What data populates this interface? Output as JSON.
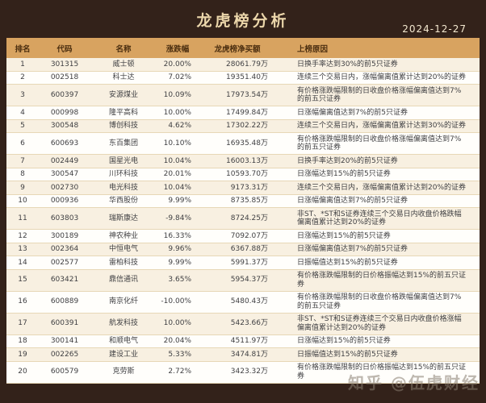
{
  "chart_data": {
    "type": "table",
    "title": "龙虎榜分析",
    "date": "2024-12-27",
    "columns": [
      "排名",
      "代码",
      "名称",
      "涨跌幅",
      "龙虎榜净买额",
      "上榜原因"
    ],
    "rows": [
      [
        "1",
        "301315",
        "威士顿",
        "20.00%",
        "28061.79万",
        "日换手率达到30%的前5只证券"
      ],
      [
        "2",
        "002518",
        "科士达",
        "7.02%",
        "19351.40万",
        "连续三个交易日内，涨幅偏离值累计达到20%的证券"
      ],
      [
        "3",
        "600397",
        "安源煤业",
        "10.09%",
        "17973.54万",
        "有价格涨跌幅限制的日收盘价格涨幅偏离值达到7%的前五只证券"
      ],
      [
        "4",
        "000998",
        "隆平高科",
        "10.00%",
        "17499.84万",
        "日涨幅偏离值达到7%的前5只证券"
      ],
      [
        "5",
        "300548",
        "博创科技",
        "4.62%",
        "17302.22万",
        "连续三个交易日内，涨幅偏离值累计达到30%的证券"
      ],
      [
        "6",
        "600693",
        "东百集团",
        "10.10%",
        "16935.48万",
        "有价格涨跌幅限制的日收盘价格涨幅偏离值达到7%的前五只证券"
      ],
      [
        "7",
        "002449",
        "国星光电",
        "10.04%",
        "16003.13万",
        "日换手率达到20%的前5只证券"
      ],
      [
        "8",
        "300547",
        "川环科技",
        "20.01%",
        "10593.70万",
        "日涨幅达到15%的前5只证券"
      ],
      [
        "9",
        "002730",
        "电光科技",
        "10.04%",
        "9173.31万",
        "连续三个交易日内，涨幅偏离值累计达到20%的证券"
      ],
      [
        "10",
        "000936",
        "华西股份",
        "9.99%",
        "8735.85万",
        "日涨幅偏离值达到7%的前5只证券"
      ],
      [
        "11",
        "603803",
        "瑞斯康达",
        "-9.84%",
        "8724.25万",
        "非ST、*ST和S证券连续三个交易日内收盘价格跌幅偏离值累计达到20%的证券"
      ],
      [
        "12",
        "300189",
        "神农种业",
        "16.33%",
        "7092.07万",
        "日涨幅达到15%的前5只证券"
      ],
      [
        "13",
        "002364",
        "中恒电气",
        "9.96%",
        "6367.88万",
        "日涨幅偏离值达到7%的前5只证券"
      ],
      [
        "14",
        "002577",
        "雷柏科技",
        "9.99%",
        "5991.37万",
        "日振幅值达到15%的前5只证券"
      ],
      [
        "15",
        "603421",
        "鼎信通讯",
        "3.65%",
        "5954.37万",
        "有价格涨跌幅限制的日价格振幅达到15%的前五只证券"
      ],
      [
        "16",
        "600889",
        "南京化纤",
        "-10.00%",
        "5480.43万",
        "有价格涨跌幅限制的日收盘价格跌幅偏离值达到7%的前五只证券"
      ],
      [
        "17",
        "600391",
        "航发科技",
        "10.00%",
        "5423.66万",
        "非ST、*ST和S证券连续三个交易日内收盘价格涨幅偏离值累计达到20%的证券"
      ],
      [
        "18",
        "300141",
        "和顺电气",
        "20.04%",
        "4511.97万",
        "日涨幅达到15%的前5只证券"
      ],
      [
        "19",
        "002265",
        "建设工业",
        "5.33%",
        "3474.81万",
        "日振幅值达到15%的前5只证券"
      ],
      [
        "20",
        "600579",
        "克劳斯",
        "2.72%",
        "3423.32万",
        "有价格涨跌幅限制的日价格振幅达到15%的前五只证券"
      ]
    ]
  },
  "watermark": "知乎 @伍虎财经",
  "colors": {
    "background": "#33221a",
    "table_header": "#d8a360",
    "row_cream": "#f8f0e1",
    "row_white": "#fffefb",
    "title_text": "#ecd7ab",
    "body_text": "#3f3f42"
  }
}
